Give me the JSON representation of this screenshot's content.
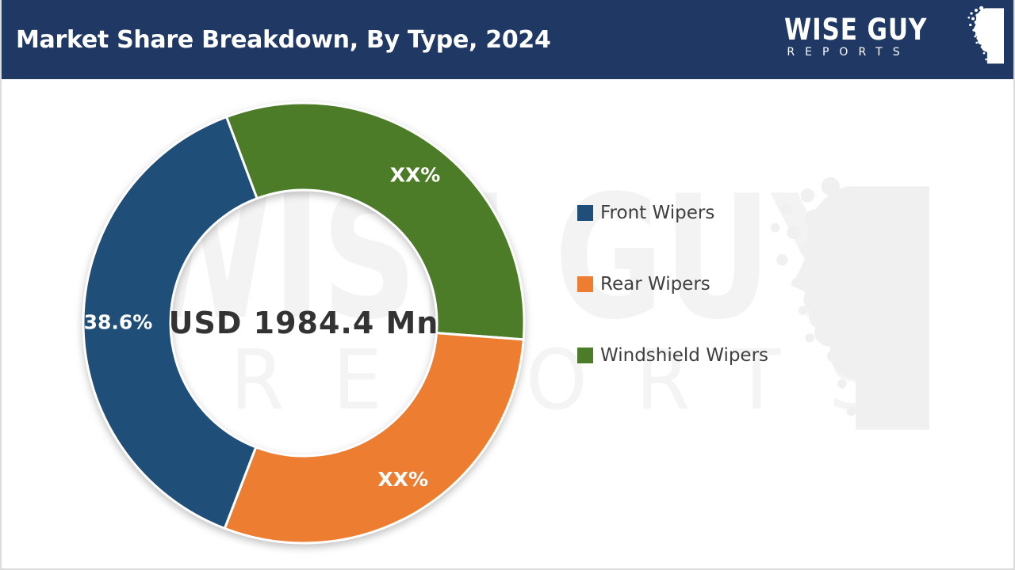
{
  "header": {
    "title": "Market Share Breakdown, By Type, 2024",
    "bg_color": "#203864"
  },
  "logo": {
    "line1": "WISE GUY",
    "line2": "REPORTS"
  },
  "watermark": {
    "line1": "WISE GUY",
    "line2": "REPORTS"
  },
  "chart_data": {
    "type": "pie",
    "variant": "donut",
    "title": "Market Share Breakdown, By Type, 2024",
    "center_label": "USD 1984.4 Mn",
    "legend_position": "right",
    "segments": [
      {
        "name": "Front Wipers",
        "label": "38.6%",
        "value_pct": 38.6,
        "color": "#1F4E79",
        "start_deg": 201.0,
        "end_deg": 339.5
      },
      {
        "name": "Windshield Wipers",
        "label": "XX%",
        "value_pct": 31.9,
        "color": "#4D7C28",
        "start_deg": 339.5,
        "end_deg": 454.3
      },
      {
        "name": "Rear Wipers",
        "label": "XX%",
        "value_pct": 29.6,
        "color": "#ED7D31",
        "start_deg": 94.3,
        "end_deg": 201.0
      }
    ]
  },
  "legend": {
    "items": [
      {
        "label": "Front Wipers",
        "color": "#1F4E79"
      },
      {
        "label": "Rear Wipers",
        "color": "#ED7D31"
      },
      {
        "label": "Windshield Wipers",
        "color": "#4D7C28"
      }
    ]
  }
}
